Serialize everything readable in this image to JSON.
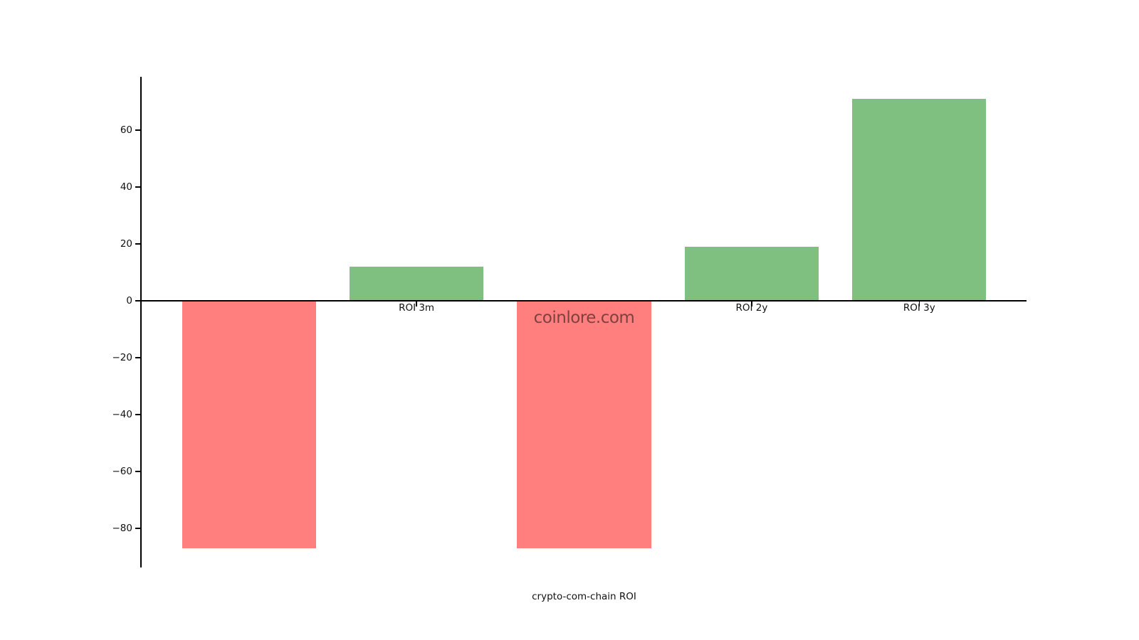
{
  "chart_data": {
    "type": "bar",
    "title": "crypto-com-chain ROI",
    "watermark": "coinlore.com",
    "categories": [
      "",
      "ROI 3m",
      "",
      "ROI 2y",
      "ROI 3y"
    ],
    "values": [
      -87,
      12,
      -87,
      19,
      71
    ],
    "bar_colors": [
      "negative",
      "positive",
      "negative",
      "positive",
      "positive"
    ],
    "y_ticks": [
      60,
      40,
      20,
      0,
      -20,
      -40,
      -60,
      -80
    ],
    "ylim": [
      -93.75,
      78.75
    ],
    "xlabel": "",
    "ylabel": "",
    "grid": false,
    "legend": "none",
    "colors": {
      "positive": "rgba(0, 128, 0, 0.5)",
      "negative": "rgba(255, 0, 0, 0.5)",
      "axis": "#000000",
      "tick_label": "#111111",
      "watermark": "rgba(0, 0, 0, 0.5)"
    }
  }
}
